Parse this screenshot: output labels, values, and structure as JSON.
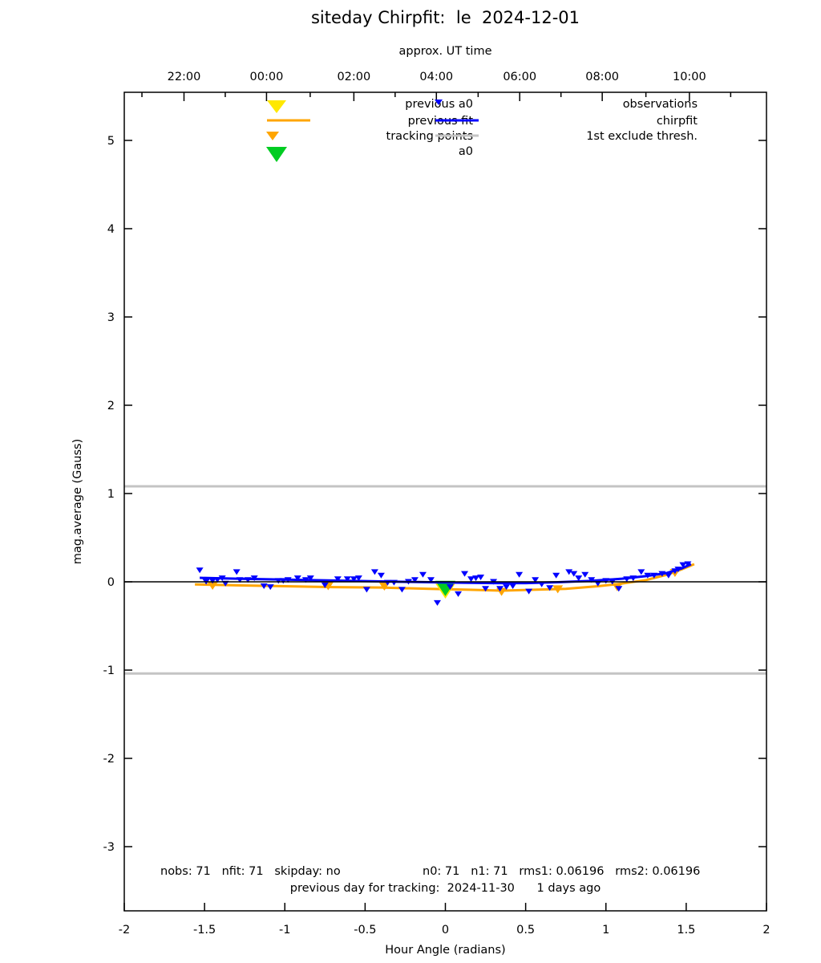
{
  "page": {
    "title": "siteday Chirpfit:  le  2024-12-01"
  },
  "chart_data": {
    "type": "scatter",
    "title": "siteday Chirpfit:  le  2024-12-01",
    "x2label": "approx. UT time",
    "xlabel": "Hour Angle (radians)",
    "ylabel": "mag.average (Gauss)",
    "xlim": [
      -2,
      2
    ],
    "ylim": [
      -3.727,
      5.545
    ],
    "grid": false,
    "legend_position": "top-inside",
    "x_ticks": [
      {
        "v": -2,
        "label": "-2"
      },
      {
        "v": -1.5,
        "label": "-1.5"
      },
      {
        "v": -1,
        "label": "-1"
      },
      {
        "v": -0.5,
        "label": "-0.5"
      },
      {
        "v": 0,
        "label": "0"
      },
      {
        "v": 0.5,
        "label": "0.5"
      },
      {
        "v": 1,
        "label": "1"
      },
      {
        "v": 1.5,
        "label": "1.5"
      },
      {
        "v": 2,
        "label": "2"
      }
    ],
    "y_ticks": [
      {
        "v": -3,
        "label": "-3"
      },
      {
        "v": -2,
        "label": "-2"
      },
      {
        "v": -1,
        "label": "-1"
      },
      {
        "v": 0,
        "label": "0"
      },
      {
        "v": 1,
        "label": "1"
      },
      {
        "v": 2,
        "label": "2"
      },
      {
        "v": 3,
        "label": "3"
      },
      {
        "v": 4,
        "label": "4"
      },
      {
        "v": 5,
        "label": "5"
      }
    ],
    "x2_ticks_major": [
      {
        "v": -1.628,
        "label": "22:00"
      },
      {
        "v": -1.114,
        "label": "00:00"
      },
      {
        "v": -0.57,
        "label": "02:00"
      },
      {
        "v": -0.056,
        "label": "04:00"
      },
      {
        "v": 0.463,
        "label": "06:00"
      },
      {
        "v": 0.977,
        "label": "08:00"
      },
      {
        "v": 1.52,
        "label": "10:00"
      }
    ],
    "x2_ticks_minor": [
      -1.89,
      -1.371,
      -0.842,
      -0.313,
      0.204,
      0.72,
      1.249,
      1.777
    ],
    "zero_line": {
      "value": 0,
      "color": "#000000",
      "width": 1.5
    },
    "series": [
      {
        "name": "1st exclude thresh.",
        "type": "hlines",
        "values": [
          1.082,
          -1.039
        ],
        "color": "#c4c4c4",
        "width": 3
      },
      {
        "name": "previous fit",
        "type": "line",
        "color": "#ffa500",
        "width": 3,
        "points": [
          [
            -1.56,
            -0.03
          ],
          [
            -1.3,
            -0.04
          ],
          [
            -1.0,
            -0.05
          ],
          [
            -0.7,
            -0.06
          ],
          [
            -0.4,
            -0.065
          ],
          [
            -0.1,
            -0.08
          ],
          [
            0.15,
            -0.09
          ],
          [
            0.35,
            -0.1
          ],
          [
            0.55,
            -0.09
          ],
          [
            0.75,
            -0.08
          ],
          [
            0.95,
            -0.05
          ],
          [
            1.1,
            -0.02
          ],
          [
            1.25,
            0.02
          ],
          [
            1.38,
            0.08
          ],
          [
            1.47,
            0.14
          ],
          [
            1.55,
            0.2
          ]
        ]
      },
      {
        "name": "tracking points",
        "type": "scatter",
        "marker": "triangle-down",
        "size": "medium",
        "color": "#ffa500",
        "points": [
          [
            -1.45,
            -0.045
          ],
          [
            -0.73,
            -0.05
          ],
          [
            -0.38,
            -0.055
          ],
          [
            0.35,
            -0.115
          ],
          [
            0.7,
            -0.085
          ],
          [
            1.07,
            -0.06
          ],
          [
            1.43,
            0.1
          ]
        ]
      },
      {
        "name": "previous a0",
        "type": "scatter",
        "marker": "triangle-down",
        "size": "large",
        "color": "#ffe800",
        "points": [
          [
            0.0,
            -0.105
          ]
        ]
      },
      {
        "name": "a0",
        "type": "scatter",
        "marker": "triangle-down",
        "size": "large",
        "color": "#00cc22",
        "points": [
          [
            0.0,
            -0.075
          ]
        ]
      },
      {
        "name": "chirpfit",
        "type": "line",
        "color": "#0000ff",
        "width": 3,
        "points": [
          [
            -1.53,
            0.045
          ],
          [
            -1.3,
            0.035
          ],
          [
            -1.0,
            0.025
          ],
          [
            -0.7,
            0.015
          ],
          [
            -0.4,
            0.005
          ],
          [
            -0.1,
            -0.005
          ],
          [
            0.1,
            -0.01
          ],
          [
            0.3,
            -0.015
          ],
          [
            0.5,
            -0.015
          ],
          [
            0.7,
            -0.005
          ],
          [
            0.9,
            0.01
          ],
          [
            1.1,
            0.035
          ],
          [
            1.25,
            0.065
          ],
          [
            1.38,
            0.1
          ],
          [
            1.47,
            0.15
          ],
          [
            1.53,
            0.2
          ]
        ]
      },
      {
        "name": "observations",
        "type": "scatter",
        "marker": "triangle-down",
        "size": "small",
        "color": "#0000ff",
        "points": [
          [
            -1.53,
            0.13
          ],
          [
            -1.49,
            0.0
          ],
          [
            -1.45,
            0.01
          ],
          [
            -1.42,
            0.02
          ],
          [
            -1.39,
            0.04
          ],
          [
            -1.37,
            -0.02
          ],
          [
            -1.3,
            0.11
          ],
          [
            -1.28,
            0.02
          ],
          [
            -1.23,
            0.02
          ],
          [
            -1.19,
            0.04
          ],
          [
            -1.13,
            -0.05
          ],
          [
            -1.09,
            -0.06
          ],
          [
            -1.04,
            0.01
          ],
          [
            -1.01,
            0.01
          ],
          [
            -0.98,
            0.02
          ],
          [
            -0.92,
            0.04
          ],
          [
            -0.87,
            0.02
          ],
          [
            -0.84,
            0.04
          ],
          [
            -0.75,
            -0.04
          ],
          [
            -0.67,
            0.03
          ],
          [
            -0.61,
            0.03
          ],
          [
            -0.57,
            0.03
          ],
          [
            -0.54,
            0.04
          ],
          [
            -0.49,
            -0.09
          ],
          [
            -0.44,
            0.11
          ],
          [
            -0.4,
            0.07
          ],
          [
            -0.36,
            -0.01
          ],
          [
            -0.32,
            -0.01
          ],
          [
            -0.27,
            -0.09
          ],
          [
            -0.23,
            0.0
          ],
          [
            -0.19,
            0.02
          ],
          [
            -0.14,
            0.08
          ],
          [
            -0.09,
            0.02
          ],
          [
            -0.05,
            -0.24
          ],
          [
            0.03,
            -0.06
          ],
          [
            0.08,
            -0.14
          ],
          [
            0.12,
            0.09
          ],
          [
            0.16,
            0.03
          ],
          [
            0.19,
            0.04
          ],
          [
            0.22,
            0.05
          ],
          [
            0.25,
            -0.08
          ],
          [
            0.3,
            0.0
          ],
          [
            0.34,
            -0.08
          ],
          [
            0.38,
            -0.06
          ],
          [
            0.42,
            -0.05
          ],
          [
            0.46,
            0.08
          ],
          [
            0.52,
            -0.11
          ],
          [
            0.56,
            0.02
          ],
          [
            0.6,
            -0.03
          ],
          [
            0.65,
            -0.07
          ],
          [
            0.69,
            0.07
          ],
          [
            0.77,
            0.11
          ],
          [
            0.8,
            0.09
          ],
          [
            0.83,
            0.04
          ],
          [
            0.87,
            0.08
          ],
          [
            0.91,
            0.02
          ],
          [
            0.95,
            -0.02
          ],
          [
            1.0,
            0.01
          ],
          [
            1.04,
            0.0
          ],
          [
            1.08,
            -0.08
          ],
          [
            1.13,
            0.03
          ],
          [
            1.17,
            0.04
          ],
          [
            1.22,
            0.11
          ],
          [
            1.26,
            0.07
          ],
          [
            1.3,
            0.07
          ],
          [
            1.35,
            0.09
          ],
          [
            1.39,
            0.07
          ],
          [
            1.43,
            0.12
          ],
          [
            1.45,
            0.14
          ],
          [
            1.48,
            0.19
          ],
          [
            1.51,
            0.2
          ]
        ]
      }
    ]
  },
  "legend": {
    "left": [
      {
        "label": "previous a0",
        "marker": "triangle-large",
        "color": "#ffe800"
      },
      {
        "label": "previous fit",
        "marker": "line",
        "color": "#ffa500"
      },
      {
        "label": "tracking points",
        "marker": "triangle-medium",
        "color": "#ffa500"
      },
      {
        "label": "a0",
        "marker": "triangle-large",
        "color": "#00cc22"
      }
    ],
    "right": [
      {
        "label": "observations",
        "marker": "triangle-small",
        "color": "#0000ff"
      },
      {
        "label": "chirpfit",
        "marker": "line",
        "color": "#0000ff"
      },
      {
        "label": "1st exclude thresh.",
        "marker": "line",
        "color": "#c4c4c4"
      }
    ]
  },
  "stats": {
    "line1_left": "nobs: 71   nfit: 71   skipday: no",
    "line1_right": "n0: 71   n1: 71   rms1: 0.06196   rms2: 0.06196",
    "line2": "previous day for tracking:  2024-11-30      1 days ago"
  }
}
